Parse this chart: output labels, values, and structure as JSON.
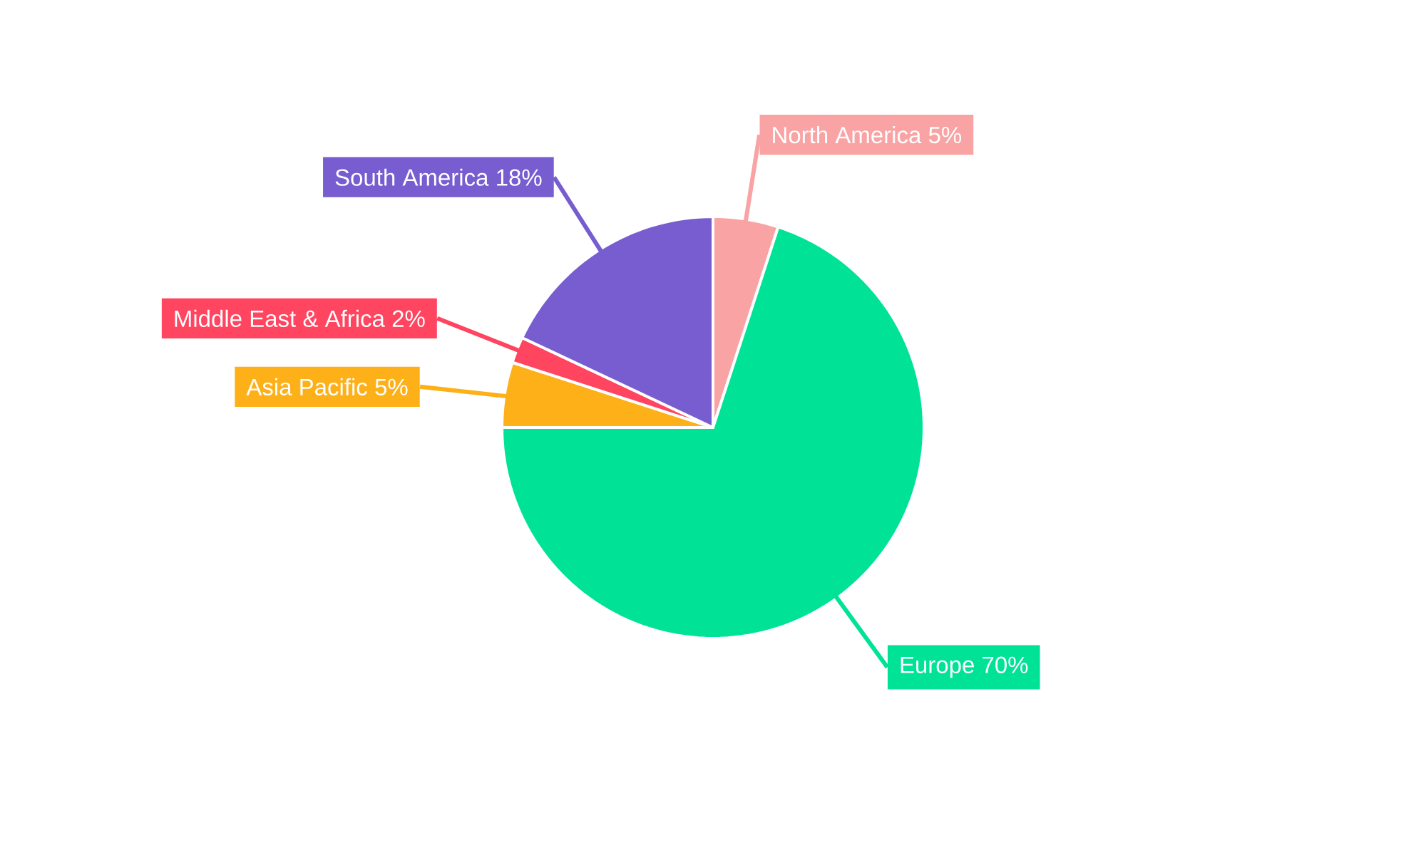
{
  "chart_data": {
    "type": "pie",
    "categories": [
      "North America",
      "Europe",
      "Asia Pacific",
      "Middle East & Africa",
      "South America"
    ],
    "values": [
      5,
      70,
      5,
      2,
      18
    ],
    "value_labels": [
      "5%",
      "70%",
      "5%",
      "2%",
      "18%"
    ],
    "colors": [
      "#f9a3a4",
      "#00e396",
      "#feb019",
      "#ff4560",
      "#775dd0"
    ]
  }
}
